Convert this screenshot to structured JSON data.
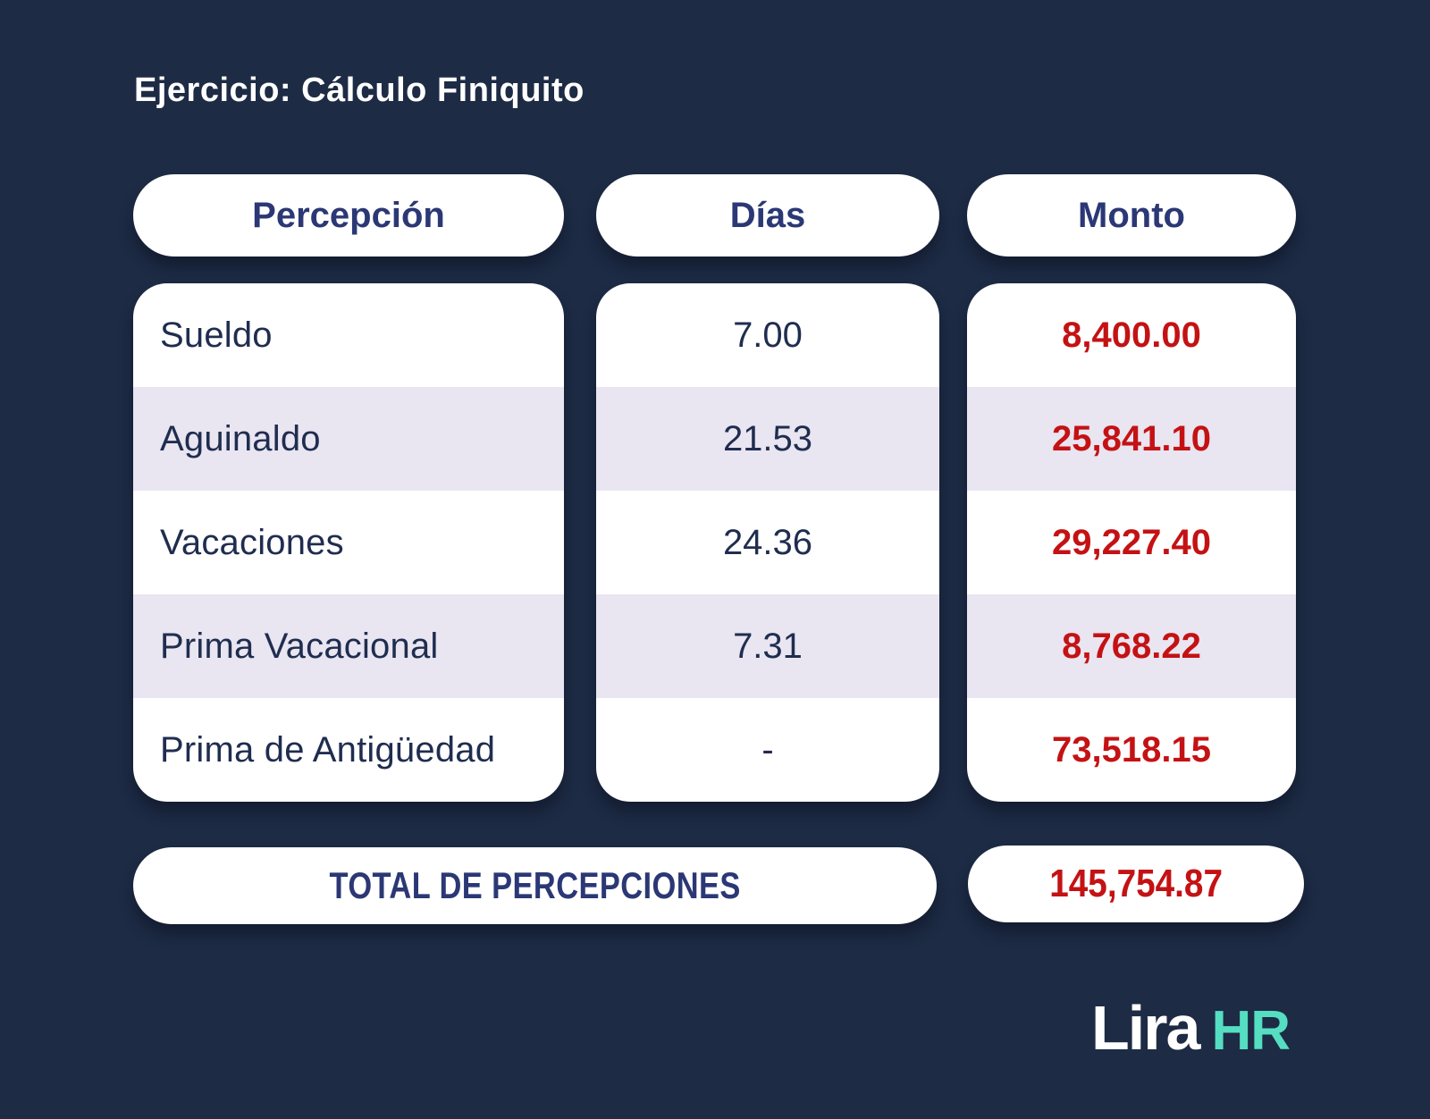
{
  "title": "Ejercicio: Cálculo Finiquito",
  "chart_data": {
    "type": "table",
    "title": "Ejercicio: Cálculo Finiquito",
    "columns": [
      "Percepción",
      "Días",
      "Monto"
    ],
    "rows": [
      {
        "percepcion": "Sueldo",
        "dias": "7.00",
        "monto": "8,400.00"
      },
      {
        "percepcion": "Aguinaldo",
        "dias": "21.53",
        "monto": "25,841.10"
      },
      {
        "percepcion": "Vacaciones",
        "dias": "24.36",
        "monto": "29,227.40"
      },
      {
        "percepcion": "Prima Vacacional",
        "dias": "7.31",
        "monto": "8,768.22"
      },
      {
        "percepcion": "Prima de Antigüedad",
        "dias": "-",
        "monto": "73,518.15"
      }
    ],
    "total": {
      "label": "TOTAL DE PERCEPCIONES",
      "value": "145,754.87"
    },
    "layout": {
      "row_striping": "alternating white / lavender",
      "amount_alignment": "center"
    }
  },
  "logo": {
    "primary": "Lira",
    "secondary": "HR"
  },
  "colors": {
    "background": "#1d2b45",
    "card_white": "#ffffff",
    "row_stripe_lavender": "#e9e5f1",
    "header_text_blue": "#2b3875",
    "body_text_navy": "#1f2d4f",
    "amount_red": "#c41214",
    "logo_teal": "#55dec2",
    "title_white": "#ffffff"
  }
}
